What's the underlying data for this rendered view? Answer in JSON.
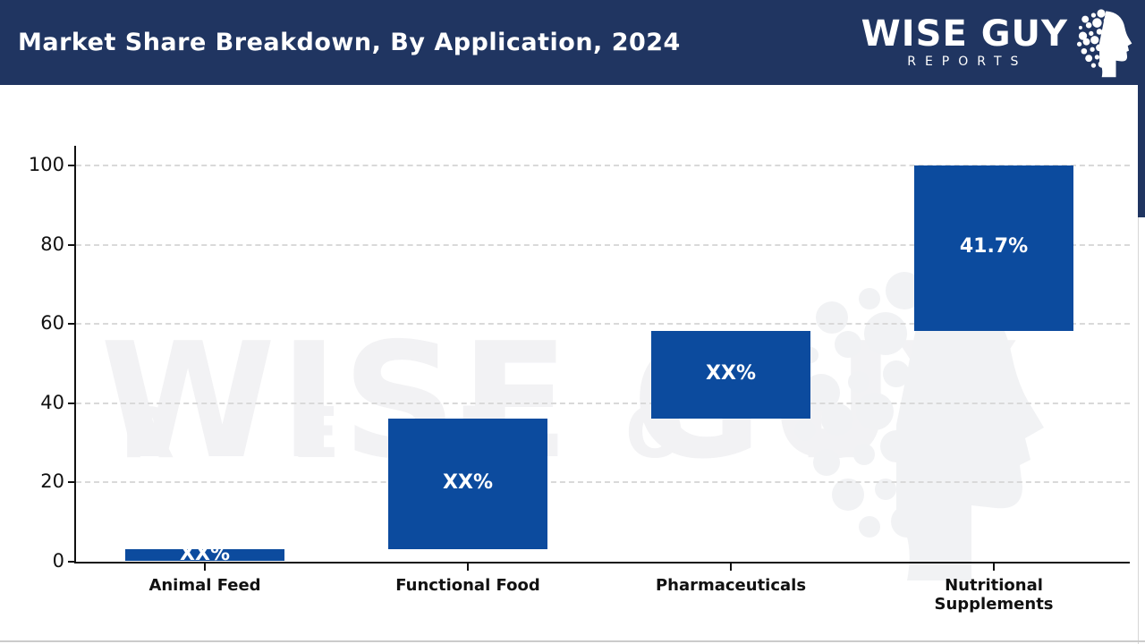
{
  "header": {
    "title": "Market Share Breakdown, By Application, 2024",
    "logo": {
      "line1": "WISE GUY",
      "line2": "REPORTS"
    }
  },
  "watermark": {
    "line1": "WISE GUY",
    "line2": "REPORTS"
  },
  "colors": {
    "header_bg": "#203561",
    "bar": "#0c4b9e",
    "gridline": "#d9d9d9",
    "axis": "#111111",
    "watermark": "#f2f2f4"
  },
  "chart_data": {
    "type": "bar",
    "subtype": "waterfall",
    "title": "Market Share Breakdown, By Application, 2024",
    "categories": [
      "Animal Feed",
      "Functional Food",
      "Pharmaceuticals",
      "Nutritional Supplements"
    ],
    "series": [
      {
        "name": "Market Share (%)",
        "segments": [
          {
            "category": "Animal Feed",
            "start": 0,
            "end": 3
          },
          {
            "category": "Functional Food",
            "start": 3,
            "end": 36
          },
          {
            "category": "Pharmaceuticals",
            "start": 36,
            "end": 58.3
          },
          {
            "category": "Nutritional Supplements",
            "start": 58.3,
            "end": 100
          }
        ]
      }
    ],
    "bar_labels": [
      "XX%",
      "XX%",
      "XX%",
      "41.7%"
    ],
    "xlabel": "",
    "ylabel": "",
    "yticks": [
      0,
      20,
      40,
      60,
      80,
      100
    ],
    "ylim": [
      0,
      105
    ],
    "grid": "horizontal-dashed",
    "legend": "none",
    "bar_color": "#0c4b9e"
  }
}
